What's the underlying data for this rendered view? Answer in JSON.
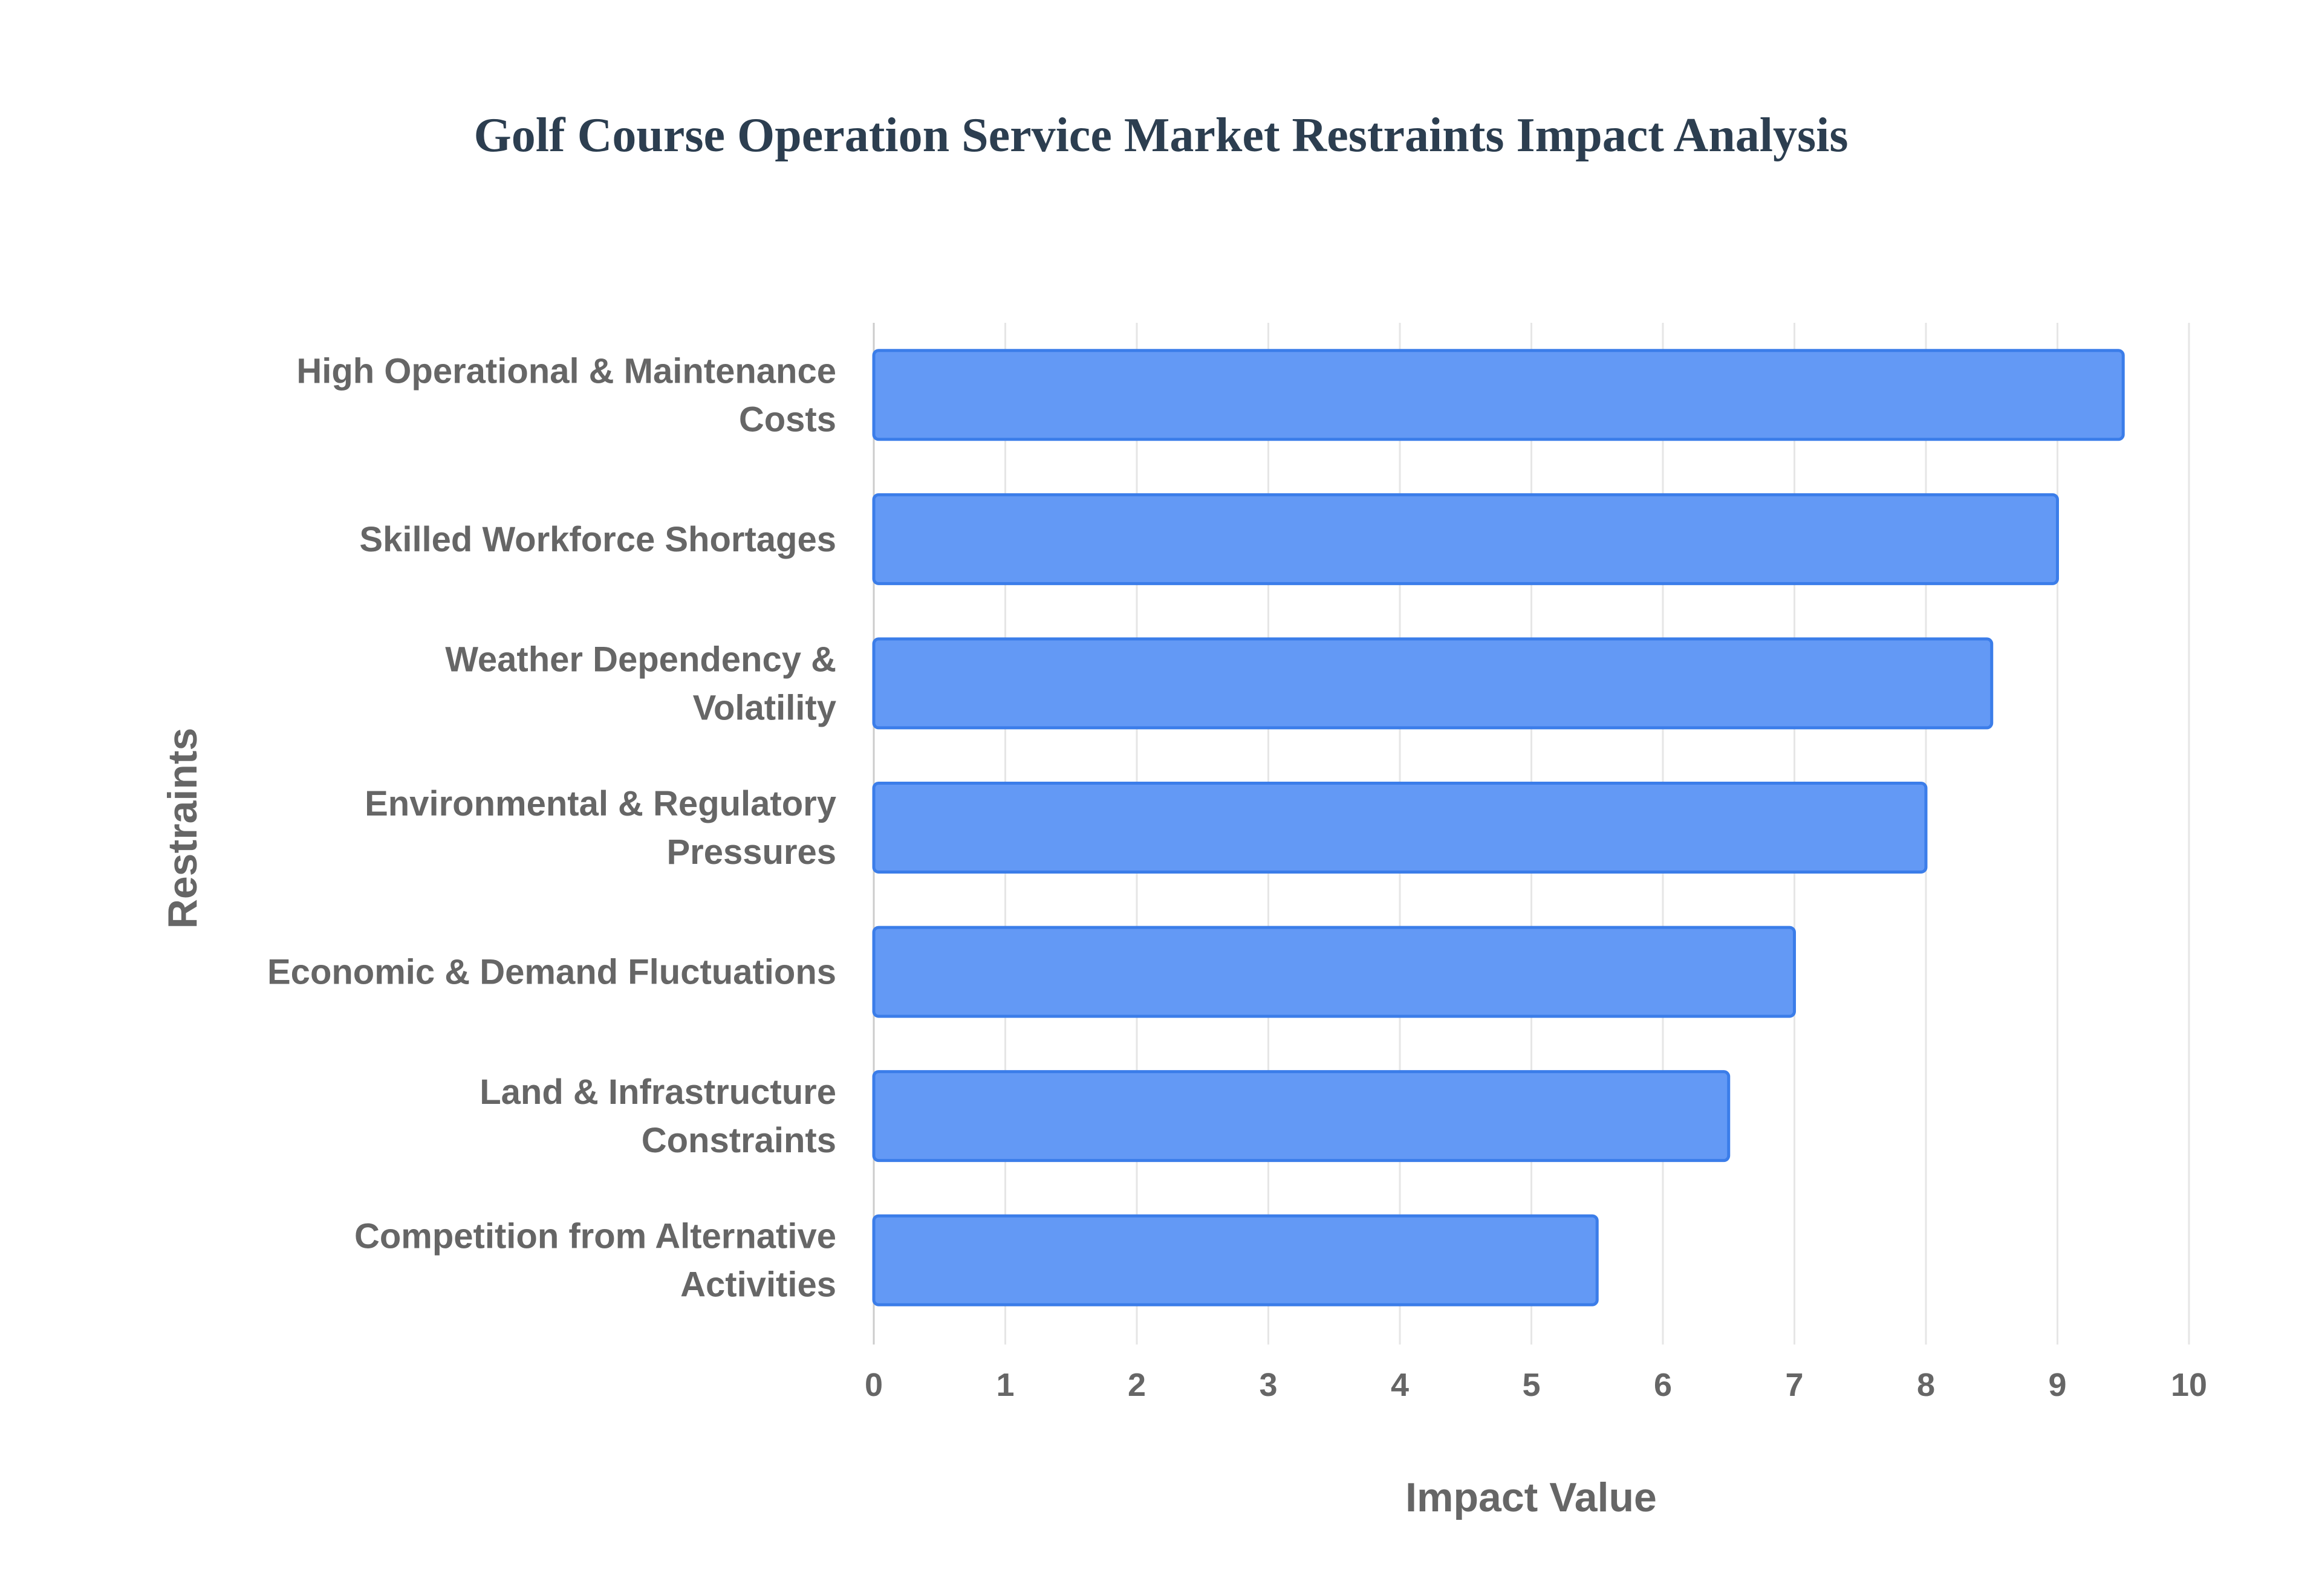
{
  "chart_data": {
    "type": "bar",
    "orientation": "horizontal",
    "title": "Golf Course Operation Service Market Restraints Impact Analysis",
    "xlabel": "Impact Value",
    "ylabel": "Restraints",
    "xlim": [
      0,
      10
    ],
    "xticks": [
      "0",
      "1",
      "2",
      "3",
      "4",
      "5",
      "6",
      "7",
      "8",
      "9",
      "10"
    ],
    "grid": true,
    "categories": [
      [
        "High Operational & Maintenance",
        "Costs"
      ],
      [
        "Skilled Workforce Shortages"
      ],
      [
        "Weather Dependency &",
        "Volatility"
      ],
      [
        "Environmental & Regulatory",
        "Pressures"
      ],
      [
        "Economic & Demand Fluctuations"
      ],
      [
        "Land & Infrastructure",
        "Constraints"
      ],
      [
        "Competition from Alternative",
        "Activities"
      ]
    ],
    "values": [
      9.5,
      9,
      8.5,
      8,
      7,
      6.5,
      5.5
    ],
    "colors": {
      "bar_fill": "#6399f5",
      "bar_border": "#3b7de9",
      "grid": "#e6e6e6"
    }
  }
}
